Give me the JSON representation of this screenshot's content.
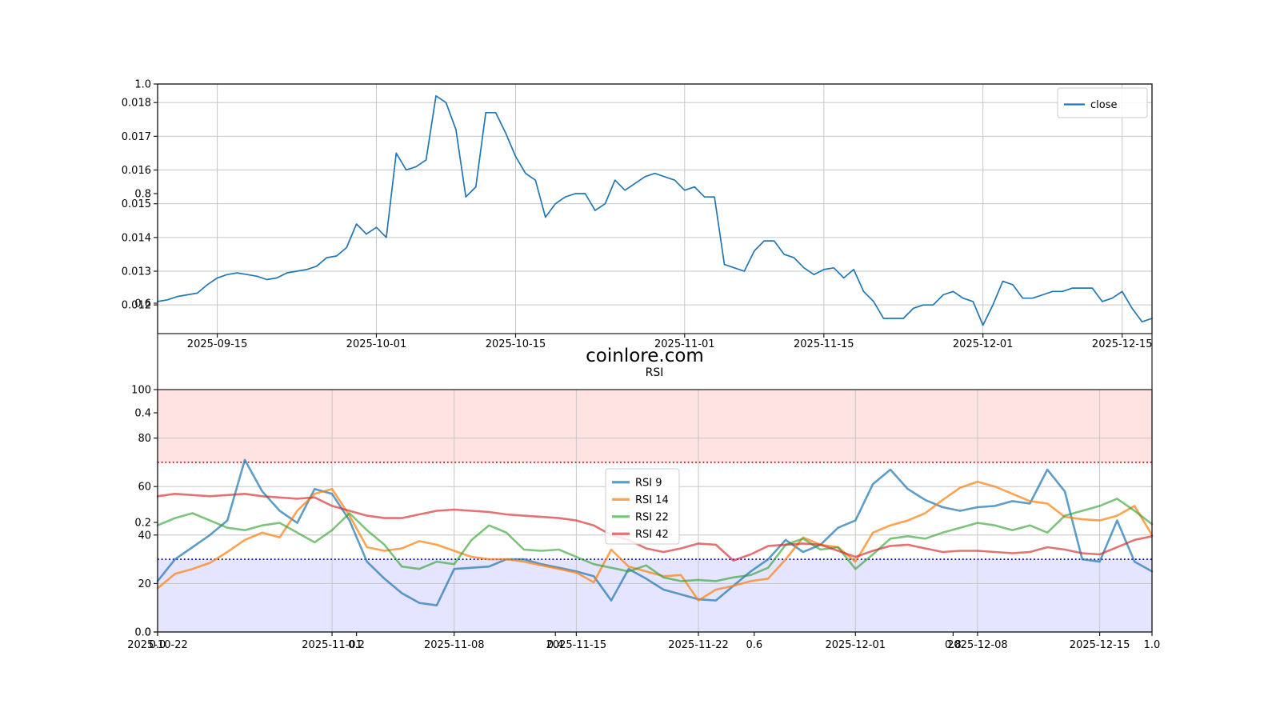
{
  "watermark": "coinlore.com",
  "colors": {
    "close_line": "#1f77b4",
    "rsi9_line": "rgba(31,119,180,0.72)",
    "rsi14_line": "rgba(255,127,14,0.72)",
    "rsi22_line": "rgba(44,160,44,0.62)",
    "rsi42_line": "rgba(214,39,40,0.65)",
    "grid": "#c6c6c6",
    "spine": "#1a1a1a",
    "overbought_line": "#e8000b",
    "oversold_line": "#0000cc",
    "overbought_band": "rgba(255,0,0,0.11)",
    "oversold_band": "rgba(0,0,255,0.10)",
    "watermark_color": "#999999",
    "legend_border": "#cccccc"
  },
  "overlay_axis": {
    "xticklabels": [
      "0.0",
      "0.2",
      "0.4",
      "0.6",
      "0.8",
      "1.0"
    ],
    "yticklabels": [
      "1.0",
      "0.8",
      "0.6",
      "0.4",
      "0.2",
      "0.0"
    ]
  },
  "chart_data": [
    {
      "type": "line",
      "title": "",
      "x_start": "2025-09-09",
      "x_freq": "daily",
      "xticks": [
        "2025-09-15",
        "2025-10-01",
        "2025-10-15",
        "2025-11-01",
        "2025-11-15",
        "2025-12-01",
        "2025-12-15"
      ],
      "ylim": [
        0.01115,
        0.01855
      ],
      "yticks": [
        0.012,
        0.013,
        0.014,
        0.015,
        0.016,
        0.017,
        0.018
      ],
      "ytick_labels": [
        "0.012",
        "0.013",
        "0.014",
        "0.015",
        "0.016",
        "0.017",
        "0.018"
      ],
      "grid": true,
      "legend": {
        "position": "upper right",
        "entries": [
          "close"
        ]
      },
      "series": [
        {
          "name": "close",
          "color_key": "close_line",
          "width": 1.7,
          "values": [
            0.0121,
            0.01215,
            0.01225,
            0.0123,
            0.01235,
            0.0126,
            0.0128,
            0.0129,
            0.01295,
            0.0129,
            0.01285,
            0.01275,
            0.0128,
            0.01295,
            0.013,
            0.01305,
            0.01315,
            0.0134,
            0.01345,
            0.0137,
            0.0144,
            0.0141,
            0.0143,
            0.014,
            0.0165,
            0.016,
            0.0161,
            0.0163,
            0.0182,
            0.018,
            0.0172,
            0.0152,
            0.0155,
            0.0177,
            0.0177,
            0.0171,
            0.0164,
            0.0159,
            0.0157,
            0.0146,
            0.015,
            0.0152,
            0.0153,
            0.0153,
            0.0148,
            0.015,
            0.0157,
            0.0154,
            0.0156,
            0.0158,
            0.0159,
            0.0158,
            0.0157,
            0.0154,
            0.0155,
            0.0152,
            0.0152,
            0.0132,
            0.0131,
            0.013,
            0.0136,
            0.0139,
            0.0139,
            0.0135,
            0.0134,
            0.0131,
            0.0129,
            0.01305,
            0.0131,
            0.0128,
            0.01305,
            0.0124,
            0.0121,
            0.0116,
            0.0116,
            0.0116,
            0.0119,
            0.012,
            0.012,
            0.0123,
            0.0124,
            0.0122,
            0.0121,
            0.0114,
            0.012,
            0.0127,
            0.0126,
            0.0122,
            0.0122,
            0.0123,
            0.0124,
            0.0124,
            0.0125,
            0.0125,
            0.0125,
            0.0121,
            0.0122,
            0.0124,
            0.0119,
            0.0115,
            0.0116
          ]
        }
      ]
    },
    {
      "type": "line",
      "title": "RSI",
      "x_start": "2025-10-22",
      "x_freq": "daily",
      "xticks": [
        "2025-10-22",
        "2025-11-01",
        "2025-11-08",
        "2025-11-15",
        "2025-11-22",
        "2025-12-01",
        "2025-12-08",
        "2025-12-15"
      ],
      "ylim": [
        0,
        100
      ],
      "yticks": [
        0,
        20,
        40,
        60,
        80,
        100
      ],
      "ytick_labels": [
        "0",
        "20",
        "40",
        "60",
        "80",
        "100"
      ],
      "grid": true,
      "hlines": [
        {
          "y": 70,
          "name": "overbought-threshold",
          "color_key": "overbought_line"
        },
        {
          "y": 30,
          "name": "oversold-threshold",
          "color_key": "oversold_line"
        }
      ],
      "hspans": [
        {
          "from": 70,
          "to": 100,
          "name": "overbought-band",
          "color_key": "overbought_band"
        },
        {
          "from": 0,
          "to": 30,
          "name": "oversold-band",
          "color_key": "oversold_band"
        }
      ],
      "legend": {
        "position": "center left-of-middle",
        "entries": [
          "RSI 9",
          "RSI 14",
          "RSI 22",
          "RSI 42"
        ]
      },
      "series": [
        {
          "name": "RSI 9",
          "color_key": "rsi9_line",
          "width": 2.6,
          "values": [
            21,
            30,
            35,
            40,
            46,
            71,
            58,
            50,
            45,
            59,
            57,
            46,
            29,
            22,
            16,
            12,
            11,
            26,
            26.5,
            27,
            30,
            30,
            28,
            26.5,
            25,
            23,
            13,
            26,
            22,
            17.5,
            15.5,
            13.5,
            13,
            19,
            25,
            30,
            38,
            33,
            36,
            43,
            46,
            61,
            67,
            59,
            54.5,
            51.5,
            50,
            51.5,
            52,
            54,
            53,
            67,
            58,
            30,
            29,
            46,
            29,
            25
          ]
        },
        {
          "name": "RSI 14",
          "color_key": "rsi14_line",
          "width": 2.6,
          "values": [
            18,
            24,
            26,
            28.5,
            33,
            38,
            41,
            39,
            50,
            57,
            59,
            48,
            35,
            33.5,
            34.5,
            37.5,
            36,
            33.5,
            31,
            30,
            30,
            29,
            27.5,
            26,
            24.5,
            20.5,
            34,
            27,
            25,
            23,
            23.5,
            13,
            17.5,
            19,
            21,
            22,
            30,
            39,
            36,
            35,
            29,
            41,
            44,
            46,
            49,
            54.5,
            59.5,
            62,
            60,
            57,
            54,
            53,
            47.5,
            46.5,
            46,
            48,
            52,
            40
          ]
        },
        {
          "name": "RSI 22",
          "color_key": "rsi22_line",
          "width": 2.6,
          "values": [
            44,
            47,
            49,
            46,
            43,
            42,
            44,
            45,
            41,
            37,
            42,
            49,
            42,
            36,
            27,
            26,
            29,
            28,
            38,
            44,
            41,
            34,
            33.5,
            34,
            31,
            28,
            26.5,
            25,
            27.5,
            22.5,
            21,
            21.5,
            21,
            22.5,
            23.5,
            26.5,
            36,
            38.5,
            34,
            35,
            26,
            32,
            38.5,
            39.5,
            38.5,
            41,
            43,
            45,
            44,
            42,
            44,
            41,
            48,
            50,
            52,
            55,
            50,
            44.5
          ]
        },
        {
          "name": "RSI 42",
          "color_key": "rsi42_line",
          "width": 2.6,
          "values": [
            56,
            57,
            56.5,
            56,
            56.5,
            57,
            56,
            55.5,
            55,
            55.5,
            52,
            50,
            48,
            47,
            47,
            48.5,
            50,
            50.5,
            50,
            49.5,
            48.5,
            48,
            47.5,
            47,
            46,
            44,
            40,
            38,
            34.5,
            33,
            34.5,
            36.5,
            36,
            29.5,
            32,
            35.5,
            36,
            36.5,
            36,
            33.5,
            31,
            33.5,
            35.5,
            36,
            34.5,
            33,
            33.5,
            33.5,
            33,
            32.5,
            33,
            35,
            34,
            32.5,
            32,
            35,
            38,
            39.5
          ]
        }
      ]
    }
  ]
}
